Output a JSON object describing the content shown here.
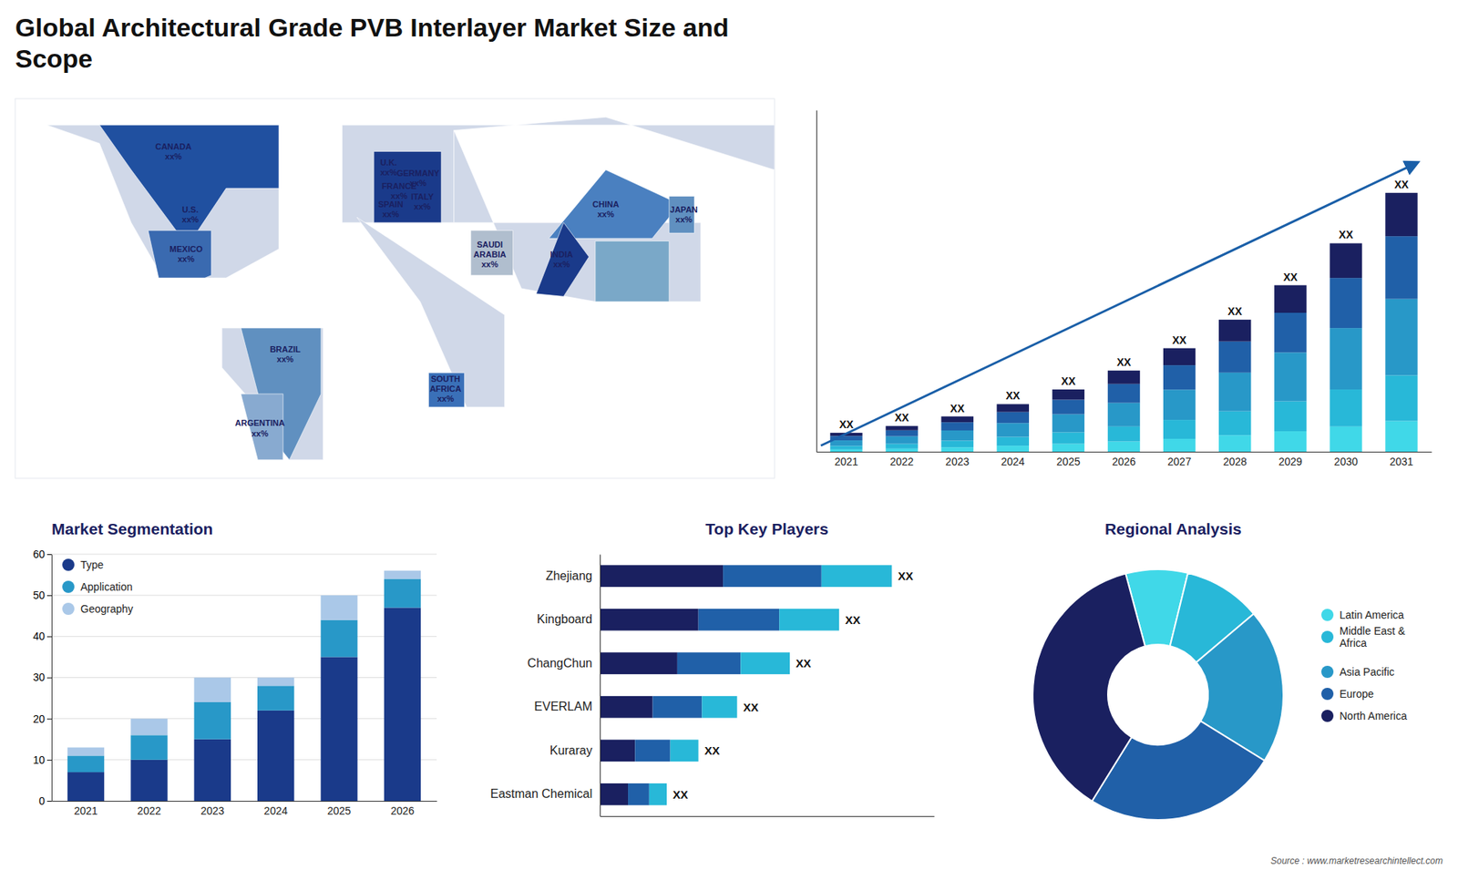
{
  "title": "Global Architectural Grade PVB Interlayer Market Size and\nScope",
  "annotations": [
    "Source : www.marketresearchintellect.com"
  ],
  "chart_data": [
    {
      "type": "map",
      "tick_labels": false,
      "xlim": [
        -180,
        180
      ],
      "ylim": [
        -62,
        82
      ],
      "regions": [
        {
          "x": [
            -170,
            -55,
            -55,
            -80,
            -86,
            -110,
            -125,
            -140,
            -165,
            -170
          ],
          "y": [
            72,
            72,
            25,
            14,
            14,
            14,
            35,
            65,
            72,
            72
          ],
          "color": "#d0d8e8"
        },
        {
          "x": [
            -82,
            -34,
            -34,
            -50,
            -60,
            -82,
            -82
          ],
          "y": [
            -5,
            -5,
            -55,
            -55,
            -40,
            -20,
            -5
          ],
          "color": "#d0d8e8"
        },
        {
          "x": [
            -25,
            -25,
            180,
            180,
            100,
            28,
            28,
            -25
          ],
          "y": [
            35,
            72,
            72,
            55,
            75,
            70,
            35,
            35
          ],
          "color": "#d0d8e8"
        },
        {
          "x": [
            -18,
            -18,
            52,
            52,
            34,
            12,
            -18
          ],
          "y": [
            37,
            37,
            0,
            -35,
            -35,
            5,
            37
          ],
          "color": "#d0d8e8"
        },
        {
          "x": [
            28,
            28,
            145,
            145,
            95,
            60,
            28
          ],
          "y": [
            70,
            35,
            35,
            5,
            5,
            10,
            70
          ],
          "color": "#d0d8e8"
        },
        {
          "x": [
            113,
            113,
            155,
            155,
            113
          ],
          "y": [
            -10,
            -10,
            -45,
            -45,
            -10
          ],
          "color": "#d0d8e8"
        },
        {
          "x": [
            -140,
            -55,
            -55,
            -80,
            -95,
            -100,
            -125,
            -140
          ],
          "y": [
            72,
            72,
            48,
            48,
            30,
            28,
            55,
            72
          ],
          "color": "#2050a0"
        },
        {
          "x": [
            -117,
            -87,
            -87,
            -90,
            -112,
            -117
          ],
          "y": [
            32,
            32,
            15,
            14,
            14,
            32
          ],
          "color": "#3a6ab0"
        },
        {
          "x": [
            -73,
            -35,
            -35,
            -50,
            -60,
            -73
          ],
          "y": [
            -5,
            -5,
            -30,
            -55,
            -45,
            -5
          ],
          "color": "#6090c0"
        },
        {
          "x": [
            -73,
            -53,
            -53,
            -65,
            -73
          ],
          "y": [
            -30,
            -30,
            -55,
            -55,
            -30
          ],
          "color": "#88aad0"
        },
        {
          "x": [
            -10,
            -10,
            22,
            22,
            -10
          ],
          "y": [
            35,
            62,
            62,
            35,
            35
          ],
          "color": "#1a3a8a"
        },
        {
          "x": [
            36,
            36,
            56,
            56,
            36
          ],
          "y": [
            15,
            32,
            32,
            15,
            15
          ],
          "color": "#b0bece"
        },
        {
          "x": [
            16,
            16,
            33,
            33,
            16
          ],
          "y": [
            -35,
            -22,
            -22,
            -35,
            -35
          ],
          "color": "#3a70b8"
        },
        {
          "x": [
            73,
            100,
            135,
            122,
            73
          ],
          "y": [
            29,
            55,
            42,
            29,
            29
          ],
          "color": "#4a80c0"
        },
        {
          "x": [
            67,
            80,
            92,
            80,
            67
          ],
          "y": [
            8,
            35,
            22,
            7,
            8
          ],
          "color": "#1a3a8a"
        },
        {
          "x": [
            130,
            130,
            142,
            142,
            130
          ],
          "y": [
            31,
            45,
            45,
            31,
            31
          ],
          "color": "#6090c0"
        },
        {
          "x": [
            95,
            95,
            130,
            130,
            95
          ],
          "y": [
            5,
            28,
            28,
            5,
            5
          ],
          "color": "#7aa8c8"
        }
      ],
      "annotations": [
        {
          "text": "CANADA\nxx%",
          "x": -105,
          "y": 62
        },
        {
          "text": "U.S.\nxx%",
          "x": -97,
          "y": 38
        },
        {
          "text": "MEXICO\nxx%",
          "x": -99,
          "y": 23
        },
        {
          "text": "BRAZIL\nxx%",
          "x": -52,
          "y": -15
        },
        {
          "text": "ARGENTINA\nxx%",
          "x": -64,
          "y": -43
        },
        {
          "text": "U.K.\nxx%",
          "x": -3,
          "y": 56
        },
        {
          "text": "FRANCE\nxx%",
          "x": 2,
          "y": 47
        },
        {
          "text": "SPAIN\nxx%",
          "x": -2,
          "y": 40
        },
        {
          "text": "GERMANY\nxx%",
          "x": 11,
          "y": 52
        },
        {
          "text": "ITALY\nxx%",
          "x": 13,
          "y": 43
        },
        {
          "text": "SAUDI\nARABIA\nxx%",
          "x": 45,
          "y": 23
        },
        {
          "text": "SOUTH\nAFRICA\nxx%",
          "x": 24,
          "y": -28
        },
        {
          "text": "CHINA\nxx%",
          "x": 100,
          "y": 40
        },
        {
          "text": "INDIA\nxx%",
          "x": 79,
          "y": 21
        },
        {
          "text": "JAPAN\nxx%",
          "x": 137,
          "y": 38
        }
      ]
    },
    {
      "type": "bar",
      "stacked": true,
      "tick_labels": "x",
      "categories": [
        "2021",
        "2022",
        "2023",
        "2024",
        "2025",
        "2026",
        "2027",
        "2028",
        "2029",
        "2030",
        "2031"
      ],
      "series": [
        {
          "color": "#40d8e8",
          "values": [
            0.15,
            0.2,
            0.28,
            0.38,
            0.5,
            0.65,
            0.82,
            1.05,
            1.3,
            1.6,
            1.95
          ]
        },
        {
          "color": "#28b8d8",
          "values": [
            0.22,
            0.3,
            0.42,
            0.56,
            0.73,
            0.95,
            1.2,
            1.52,
            1.9,
            2.35,
            2.9
          ]
        },
        {
          "color": "#2898c8",
          "values": [
            0.35,
            0.48,
            0.65,
            0.88,
            1.15,
            1.5,
            1.92,
            2.45,
            3.1,
            3.9,
            4.85
          ]
        },
        {
          "color": "#2060a8",
          "values": [
            0.28,
            0.38,
            0.52,
            0.7,
            0.92,
            1.2,
            1.55,
            1.98,
            2.52,
            3.18,
            3.98
          ]
        },
        {
          "color": "#1a2060",
          "values": [
            0.2,
            0.27,
            0.37,
            0.5,
            0.65,
            0.85,
            1.08,
            1.38,
            1.75,
            2.2,
            2.75
          ]
        }
      ],
      "ylim": [
        0,
        21.6876
      ],
      "top_labels": [
        "XX",
        "XX",
        "XX",
        "XX",
        "XX",
        "XX",
        "XX",
        "XX",
        "XX",
        "XX",
        "XX"
      ]
    },
    {
      "type": "bar",
      "stacked": true,
      "title": "Market Segmentation",
      "categories": [
        "2021",
        "2022",
        "2023",
        "2024",
        "2025",
        "2026"
      ],
      "series": [
        {
          "name": "Type",
          "color": "#1a3a8a",
          "values": [
            7,
            10,
            15,
            22,
            35,
            47
          ]
        },
        {
          "name": "Application",
          "color": "#2898c8",
          "values": [
            4,
            6,
            9,
            6,
            9,
            7
          ]
        },
        {
          "name": "Geography",
          "color": "#aac8e8",
          "values": [
            2,
            4,
            6,
            2,
            6,
            2
          ]
        }
      ],
      "ylim": [
        0,
        60
      ],
      "yticks": [
        0,
        10,
        20,
        30,
        40,
        50,
        60
      ],
      "grid": true,
      "legend": "upper left"
    },
    {
      "type": "bar",
      "orientation": "horizontal",
      "stacked": true,
      "title": "Top Key Players",
      "tick_labels": "y",
      "categories": [
        "Zhejiang",
        "Kingboard",
        "ChangChun",
        "EVERLAM",
        "Kuraray",
        "Eastman Chemical"
      ],
      "series": [
        {
          "color": "#1a2060",
          "values": [
            0.35,
            0.28,
            0.22,
            0.15,
            0.1,
            0.08
          ]
        },
        {
          "color": "#2060a8",
          "values": [
            0.28,
            0.23,
            0.18,
            0.14,
            0.1,
            0.06
          ]
        },
        {
          "color": "#28b8d8",
          "values": [
            0.2,
            0.17,
            0.14,
            0.1,
            0.08,
            0.05
          ]
        }
      ],
      "xlim": [
        0,
        0.95
      ],
      "end_labels": [
        "XX",
        "XX",
        "XX",
        "XX",
        "XX",
        "XX"
      ]
    },
    {
      "type": "donut",
      "title": "Regional Analysis",
      "categories": [
        "Latin America",
        "Middle East &\nAfrica",
        "Asia Pacific",
        "Europe",
        "North America"
      ],
      "values": [
        8,
        10,
        20,
        25,
        37
      ],
      "colors": [
        "#40d8e8",
        "#28b8d8",
        "#2898c8",
        "#2060a8",
        "#1a2060"
      ],
      "legend": "right"
    }
  ]
}
